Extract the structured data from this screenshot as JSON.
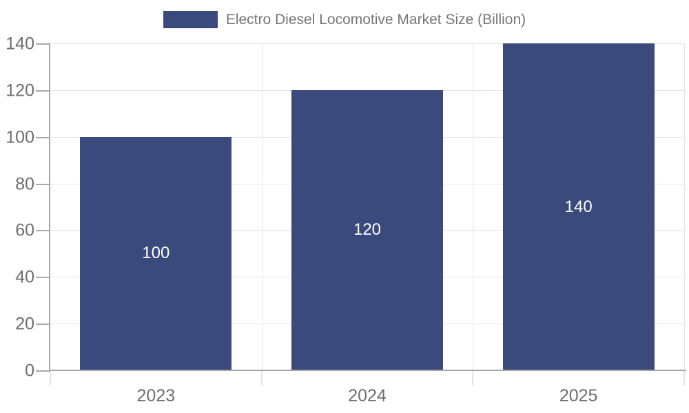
{
  "chart_data": {
    "type": "bar",
    "title": "",
    "legend_label": "Electro Diesel Locomotive Market Size (Billion)",
    "legend_position": "top-center",
    "categories": [
      "2023",
      "2024",
      "2025"
    ],
    "series": [
      {
        "name": "Electro Diesel Locomotive Market Size (Billion)",
        "values": [
          100,
          120,
          140
        ]
      }
    ],
    "bar_value_labels": [
      "100",
      "120",
      "140"
    ],
    "xlabel": "",
    "ylabel": "",
    "ylim": [
      0,
      140
    ],
    "yticks": [
      0,
      20,
      40,
      60,
      80,
      100,
      120,
      140
    ],
    "grid": true,
    "colors": {
      "bar": "#3A4A7D",
      "bar_value_label": "#FFFFFF",
      "legend_text": "#757575",
      "tick_label": "#6E6E6E",
      "axis_line": "#A6A6A6",
      "grid_line": "#E4E4E4",
      "x_tick_mark": "#E2E2E2",
      "y_tick_mark": "#A9A9A9",
      "background": "#FFFFFF"
    }
  }
}
